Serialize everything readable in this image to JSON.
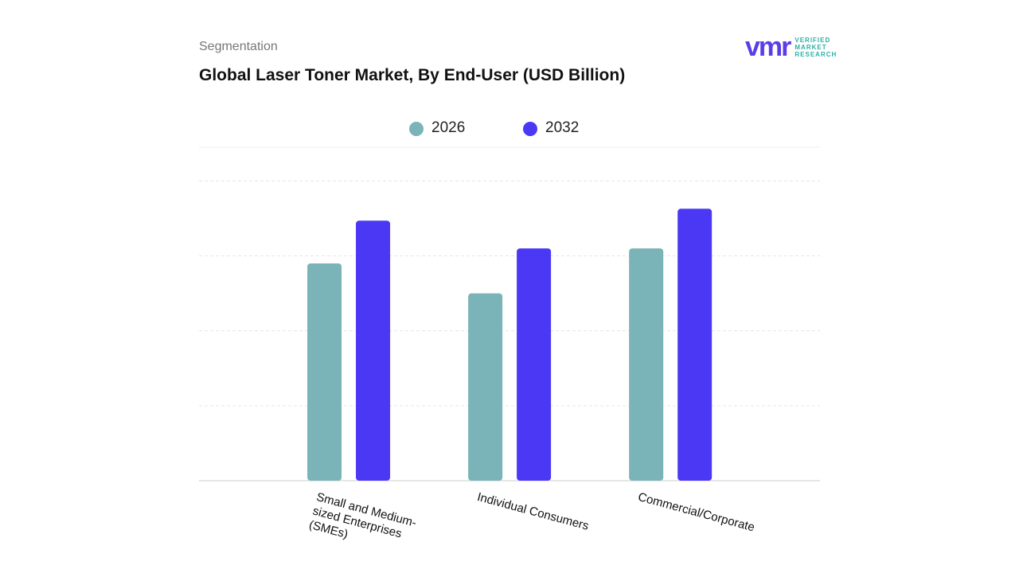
{
  "header": {
    "section": "Segmentation",
    "logo": {
      "mark": "vmr",
      "lines": [
        "VERIFIED",
        "MARKET",
        "RESEARCH"
      ]
    }
  },
  "chart_data": {
    "type": "bar",
    "title": "Global Laser Toner Market, By End-User (USD Billion)",
    "categories": [
      "Small and Medium-sized Enterprises (SMEs)",
      "Individual Consumers",
      "Commercial/Corporate"
    ],
    "series": [
      {
        "name": "2026",
        "color": "#7ab4b8",
        "values": [
          2.9,
          2.5,
          3.1
        ]
      },
      {
        "name": "2032",
        "color": "#4b38f5",
        "values": [
          3.47,
          3.1,
          3.63
        ]
      }
    ],
    "ylim": [
      0,
      4.45
    ],
    "yticks": [
      0,
      1,
      2,
      3,
      4
    ],
    "grid": true
  }
}
